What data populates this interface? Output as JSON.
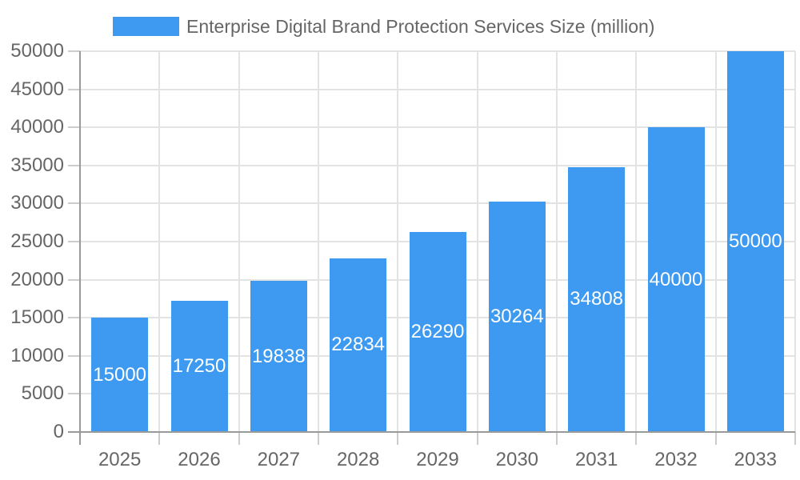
{
  "legend": {
    "label": "Enterprise Digital Brand Protection Services Size (million)"
  },
  "chart_data": {
    "type": "bar",
    "title": "Enterprise Digital Brand Protection Services Size (million)",
    "legend_entries": [
      "Enterprise Digital Brand Protection Services Size (million)"
    ],
    "legend_position": "top",
    "categories": [
      "2025",
      "2026",
      "2027",
      "2028",
      "2029",
      "2030",
      "2031",
      "2032",
      "2033"
    ],
    "values": [
      15000,
      17250,
      19838,
      22834,
      26290,
      30264,
      34808,
      40000,
      50000
    ],
    "value_labels_inside_bars": true,
    "xlabel": "",
    "ylabel": "",
    "ylim": [
      0,
      50000
    ],
    "yticks": [
      0,
      5000,
      10000,
      15000,
      20000,
      25000,
      30000,
      35000,
      40000,
      45000,
      50000
    ],
    "grid": true,
    "colors": {
      "bar": "#3D9AF0",
      "grid": "#E3E3E3",
      "axis": "#9A9A9A",
      "tick": "#CCCCCC",
      "text": "#666666",
      "value_label": "#FFFFFF",
      "background": "#FFFFFF"
    }
  }
}
